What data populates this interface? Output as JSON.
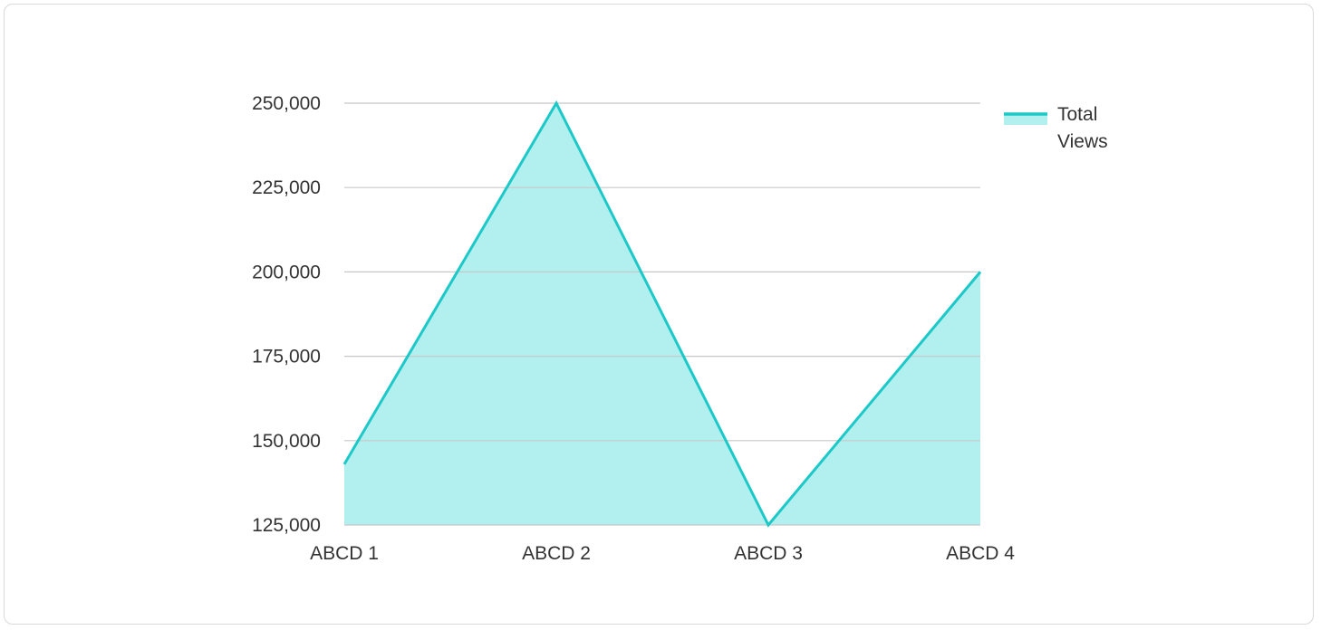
{
  "chart_data": {
    "type": "area",
    "title": "",
    "xlabel": "",
    "ylabel": "",
    "categories": [
      "ABCD 1",
      "ABCD 2",
      "ABCD 3",
      "ABCD 4"
    ],
    "series": [
      {
        "name": "Total Views",
        "values": [
          143000,
          250000,
          125000,
          200000
        ]
      }
    ],
    "ylim": [
      125000,
      250000
    ],
    "yticks": [
      125000,
      150000,
      175000,
      200000,
      225000,
      250000
    ],
    "ytick_labels": [
      "125,000",
      "150,000",
      "175,000",
      "200,000",
      "225,000",
      "250,000"
    ],
    "grid": true,
    "legend": {
      "position": "top-right",
      "label_lines": [
        "Total",
        "Views"
      ]
    },
    "colors": {
      "line": "#1cc8c8",
      "fill": "#b2efef",
      "grid": "#c8c8c8",
      "text": "#333333"
    }
  }
}
